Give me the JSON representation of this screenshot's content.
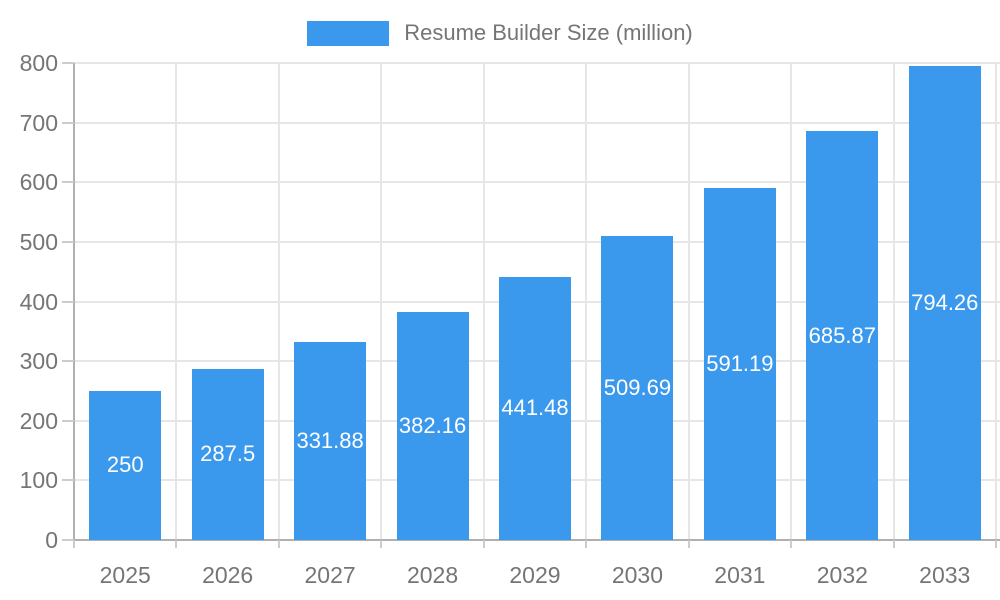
{
  "legend": {
    "label": "Resume Builder Size (million)"
  },
  "chart_data": {
    "type": "bar",
    "title": "Resume Builder Size (million)",
    "xlabel": "",
    "ylabel": "",
    "categories": [
      "2025",
      "2026",
      "2027",
      "2028",
      "2029",
      "2030",
      "2031",
      "2032",
      "2033"
    ],
    "values": [
      250,
      287.5,
      331.88,
      382.16,
      441.48,
      509.69,
      591.19,
      685.87,
      794.26
    ],
    "ylim": [
      0,
      800
    ],
    "yticks": [
      0,
      100,
      200,
      300,
      400,
      500,
      600,
      700,
      800
    ],
    "grid": true,
    "legend_position": "top-center",
    "colors": {
      "bar": "#3b99ed",
      "grid": "#e6e6e6",
      "axis_line": "#b0b0b0",
      "tick": "#cccccc",
      "axis_text": "#757575",
      "value_label": "#ffffff"
    }
  }
}
